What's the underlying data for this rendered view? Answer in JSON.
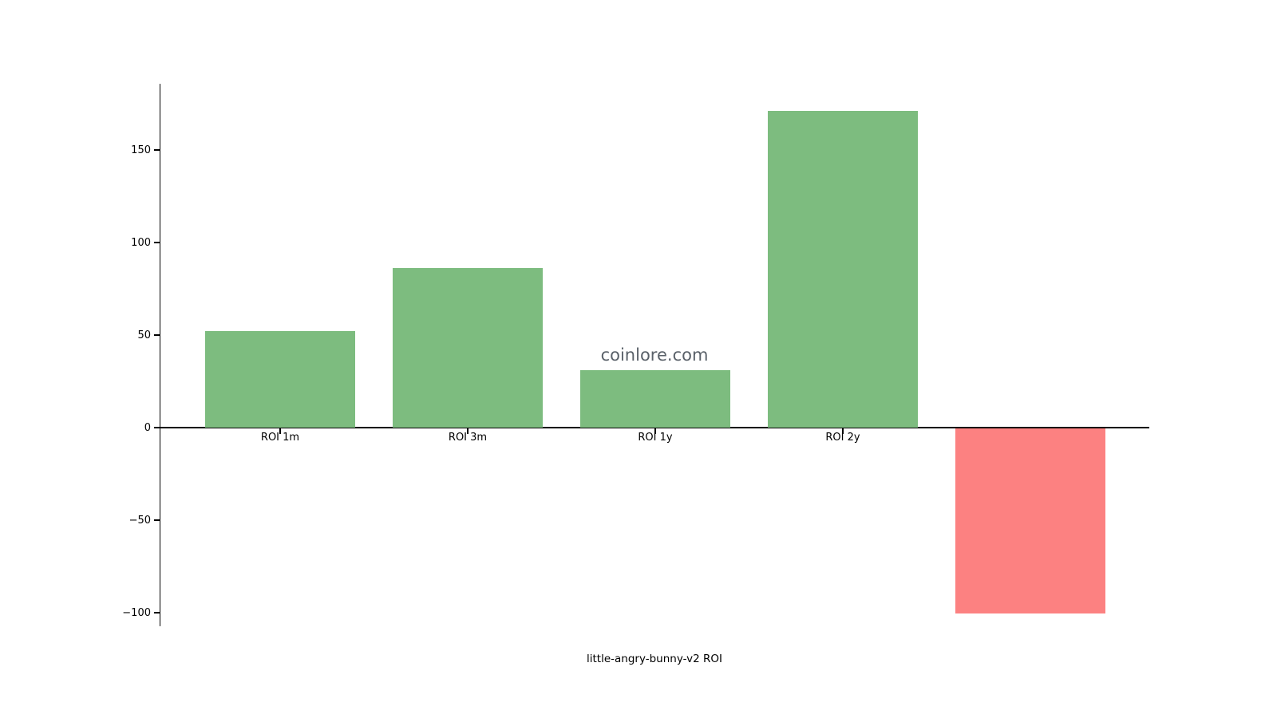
{
  "page": {
    "background": "#ffffff"
  },
  "chart_data": {
    "type": "bar",
    "title": "little-angry-bunny-v2 ROI",
    "watermark": "coinlore.com",
    "categories": [
      "ROI 1m",
      "ROI 3m",
      "ROI 1y",
      "ROI 2y",
      ""
    ],
    "values": [
      52,
      86,
      31,
      171,
      -100
    ],
    "bar_colors": [
      "#7dbc7f",
      "#7dbc7f",
      "#7dbc7f",
      "#7dbc7f",
      "#fc8181"
    ],
    "positive_color": "#7dbc7f",
    "negative_color": "#fc8181",
    "yticks": [
      150,
      100,
      50,
      0,
      -50,
      -100
    ],
    "ylim": [
      -107,
      186
    ],
    "xlabel": "",
    "ylabel": "",
    "grid": false,
    "legend": null,
    "axis_color": "#000000",
    "tick_text_color": "#000000",
    "watermark_color": "#5a6169"
  }
}
